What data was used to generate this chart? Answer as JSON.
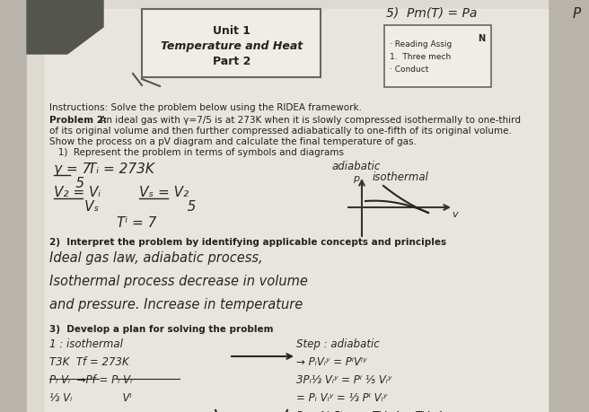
{
  "bg_color_top": "#8a8a8a",
  "bg_color_paper": "#d8d4cc",
  "paper_color": "#e8e4dc",
  "dark_corner": "#4a4a4a",
  "title_box_color": "#f5f2ec",
  "border_color": "#888888",
  "hw_color": "#2a2520",
  "print_color": "#222222",
  "title_line1": "Unit 1",
  "title_line2": "Temperature and Heat",
  "title_line3": "Part 2",
  "sidebar_lines": [
    "N",
    "· Reading Assig",
    "1.  Three mech",
    "· Conduct"
  ],
  "top_formula": "5)  Pm(T) = Pa",
  "corner_p": "P",
  "instructions": "Instructions: Solve the problem below using the RIDEA framework.",
  "prob_bold": "Problem 2:",
  "prob_text": " An ideal gas with γ=7/5 is at 273K when it is slowly compressed isothermally to one-third",
  "prob_text2": "of its original volume and then further compressed adiabatically to one-fifth of its original volume.",
  "prob_text3": "Show the process on a pV diagram and calculate the final temperature of gas.",
  "s1_header": "   1)  Represent the problem in terms of symbols and diagrams",
  "s2_header": "2)  Interpret the problem by identifying applicable concepts and principles",
  "s3_header": "3)  Develop a plan for solving the problem"
}
